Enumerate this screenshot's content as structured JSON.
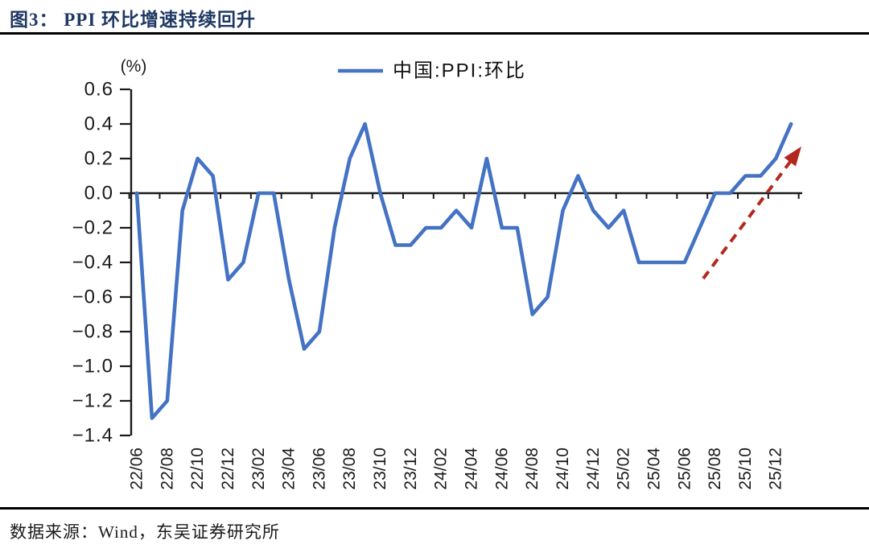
{
  "figure": {
    "title": "图3： PPI 环比增速持续回升",
    "source": "数据来源：Wind，东吴证券研究所"
  },
  "chart_data": {
    "type": "line",
    "title": "图3： PPI 环比增速持续回升",
    "unit_label": "(%)",
    "legend_entries": [
      {
        "label": "中国:PPI:环比",
        "color": "#4472C4"
      }
    ],
    "legend_position": "top-center",
    "grid": false,
    "ylim": [
      -1.4,
      0.6
    ],
    "ytick_step": 0.2,
    "yticks": [
      0.6,
      0.4,
      0.2,
      0.0,
      -0.2,
      -0.4,
      -0.6,
      -0.8,
      -1.0,
      -1.2,
      -1.4
    ],
    "x": [
      "22/06",
      "22/07",
      "22/08",
      "22/09",
      "22/10",
      "22/11",
      "22/12",
      "23/01",
      "23/02",
      "23/03",
      "23/04",
      "23/05",
      "23/06",
      "23/07",
      "23/08",
      "23/09",
      "23/10",
      "23/11",
      "23/12",
      "24/01",
      "24/02",
      "24/03",
      "24/04",
      "24/05",
      "24/06",
      "24/07",
      "24/08",
      "24/09",
      "24/10",
      "24/11",
      "24/12",
      "25/01",
      "25/02",
      "25/03",
      "25/04",
      "25/05",
      "25/06",
      "25/07",
      "25/08",
      "25/09",
      "25/10",
      "25/11",
      "25/12",
      "26/01"
    ],
    "x_tick_labels": [
      "22/06",
      "22/08",
      "22/10",
      "22/12",
      "23/02",
      "23/04",
      "23/06",
      "23/08",
      "23/10",
      "23/12",
      "24/02",
      "24/04",
      "24/06",
      "24/08",
      "24/10",
      "24/12",
      "25/02",
      "25/04",
      "25/06",
      "25/08",
      "25/10",
      "25/12"
    ],
    "series": [
      {
        "name": "中国:PPI:环比",
        "color": "#4472C4",
        "values": [
          0.0,
          -1.3,
          -1.2,
          -0.1,
          0.2,
          0.1,
          -0.5,
          -0.4,
          0.0,
          0.0,
          -0.5,
          -0.9,
          -0.8,
          -0.2,
          0.2,
          0.4,
          0.0,
          -0.3,
          -0.3,
          -0.2,
          -0.2,
          -0.1,
          -0.2,
          0.2,
          -0.2,
          -0.2,
          -0.7,
          -0.6,
          -0.1,
          0.1,
          -0.1,
          -0.2,
          -0.1,
          -0.4,
          -0.4,
          -0.4,
          -0.4,
          -0.2,
          0.0,
          0.0,
          0.1,
          0.1,
          0.2,
          0.4
        ]
      }
    ],
    "annotations": [
      {
        "type": "trend-arrow",
        "line_style": "dashed",
        "color": "#B3281E",
        "direction": "up-right"
      }
    ]
  }
}
